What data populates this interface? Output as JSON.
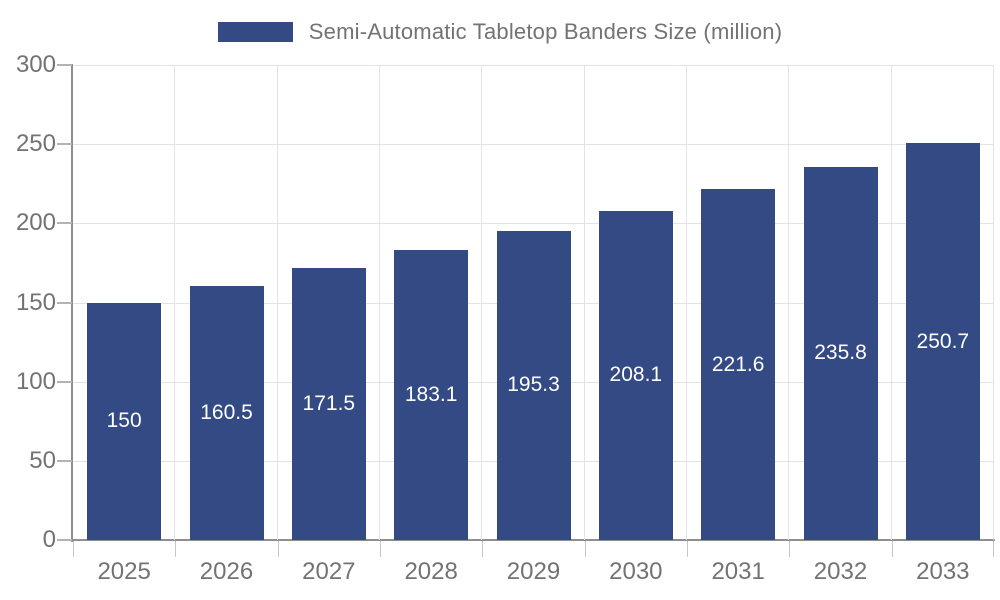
{
  "chart_data": {
    "type": "bar",
    "legend": "Semi-Automatic Tabletop Banders Size (million)",
    "legend_position": "top-center",
    "categories": [
      "2025",
      "2026",
      "2027",
      "2028",
      "2029",
      "2030",
      "2031",
      "2032",
      "2033"
    ],
    "values": [
      150,
      160.5,
      171.5,
      183.1,
      195.3,
      208.1,
      221.6,
      235.8,
      250.7
    ],
    "value_labels": [
      "150",
      "160.5",
      "171.5",
      "183.1",
      "195.3",
      "208.1",
      "221.6",
      "235.8",
      "250.7"
    ],
    "xlabel": "",
    "ylabel": "",
    "ylim": [
      0,
      300
    ],
    "yticks": [
      0,
      50,
      100,
      150,
      200,
      250,
      300
    ],
    "grid": true,
    "colors": {
      "bar": "#344a85",
      "bar_label": "#ffffff",
      "axis_line": "#8f8f8f",
      "gridline": "#e2e2e8",
      "tick": "#c6c6c6",
      "text": "#737373"
    }
  }
}
